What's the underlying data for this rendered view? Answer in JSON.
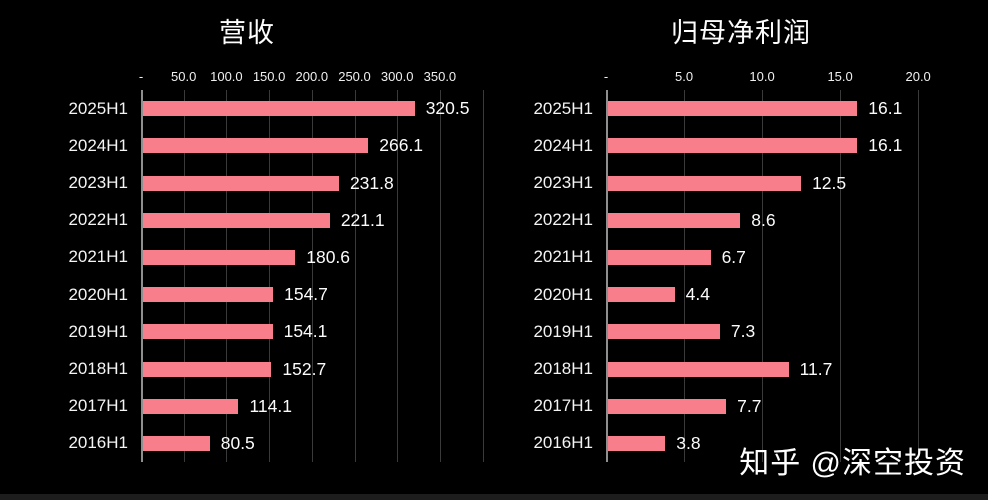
{
  "colors": {
    "background": "#000000",
    "bar": "#F87E8C",
    "gridline": "#3a3a3a",
    "axis_line": "#8f8f8f",
    "text": "#ffffff"
  },
  "watermark": {
    "text": "知乎 @深空投资"
  },
  "chart_data": [
    {
      "type": "bar",
      "orientation": "horizontal",
      "title": "营收",
      "categories": [
        "2025H1",
        "2024H1",
        "2023H1",
        "2022H1",
        "2021H1",
        "2020H1",
        "2019H1",
        "2018H1",
        "2017H1",
        "2016H1"
      ],
      "values": [
        320.5,
        266.1,
        231.8,
        221.1,
        180.6,
        154.7,
        154.1,
        152.7,
        114.1,
        80.5
      ],
      "value_labels": [
        "320.5",
        "266.1",
        "231.8",
        "221.1",
        "180.6",
        "154.7",
        "154.1",
        "152.7",
        "114.1",
        "80.5"
      ],
      "ticks": [
        {
          "v": 0,
          "label": "-"
        },
        {
          "v": 50,
          "label": "50.0"
        },
        {
          "v": 100,
          "label": "100.0"
        },
        {
          "v": 150,
          "label": "150.0"
        },
        {
          "v": 200,
          "label": "200.0"
        },
        {
          "v": 250,
          "label": "250.0"
        },
        {
          "v": 300,
          "label": "300.0"
        },
        {
          "v": 350,
          "label": "350.0"
        }
      ],
      "gridline_values": [
        50,
        100,
        150,
        200,
        250,
        300,
        350,
        400
      ],
      "axis_max": 402.8,
      "grid": true,
      "legend": false
    },
    {
      "type": "bar",
      "orientation": "horizontal",
      "title": "归母净利润",
      "categories": [
        "2025H1",
        "2024H1",
        "2023H1",
        "2022H1",
        "2021H1",
        "2020H1",
        "2019H1",
        "2018H1",
        "2017H1",
        "2016H1"
      ],
      "values": [
        16.1,
        16.1,
        12.5,
        8.6,
        6.7,
        4.4,
        7.3,
        11.7,
        7.7,
        3.8
      ],
      "value_labels": [
        "16.1",
        "16.1",
        "12.5",
        "8.6",
        "6.7",
        "4.4",
        "7.3",
        "11.7",
        "7.7",
        "3.8"
      ],
      "ticks": [
        {
          "v": 0,
          "label": "-"
        },
        {
          "v": 5,
          "label": "5.0"
        },
        {
          "v": 10,
          "label": "10.0"
        },
        {
          "v": 15,
          "label": "15.0"
        },
        {
          "v": 20,
          "label": "20.0"
        }
      ],
      "gridline_values": [
        5,
        10,
        15,
        20
      ],
      "axis_max": 21.4,
      "grid": true,
      "legend": false
    }
  ]
}
